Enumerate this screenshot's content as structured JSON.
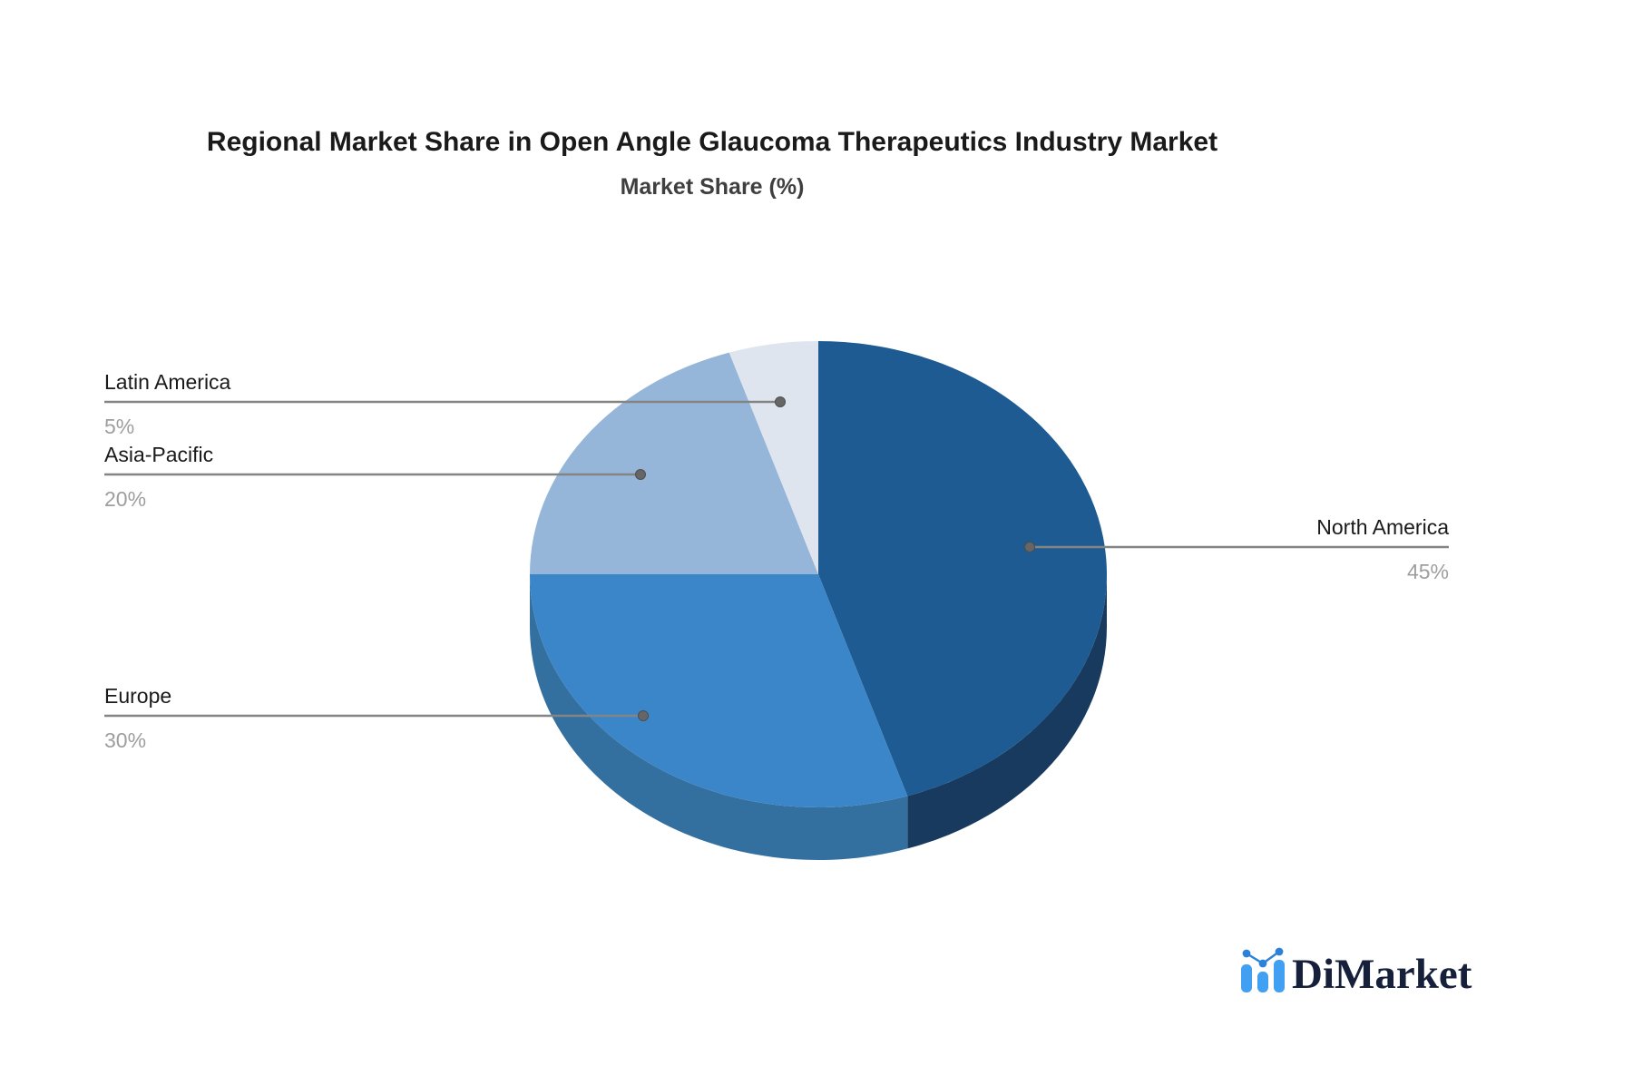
{
  "title": "Regional Market Share in Open Angle Glaucoma Therapeutics Industry Market",
  "subtitle": "Market Share (%)",
  "chart_data": {
    "type": "pie",
    "title": "Regional Market Share in Open Angle Glaucoma Therapeutics Industry Market",
    "subtitle": "Market Share (%)",
    "unit": "%",
    "direction": "clockwise",
    "start_angle_deg": 0,
    "style": "3d",
    "legend_position": "none",
    "categories": [
      "North America",
      "Europe",
      "Asia-Pacific",
      "Latin America"
    ],
    "values": [
      45,
      30,
      20,
      5
    ],
    "series": [
      {
        "name": "North America",
        "value": 45,
        "label": "45%",
        "color": "#1d5b92",
        "side_color": "#173a5e",
        "label_side": "right"
      },
      {
        "name": "Europe",
        "value": 30,
        "label": "30%",
        "color": "#3b86c9",
        "side_color": "#34709f",
        "label_side": "left"
      },
      {
        "name": "Asia-Pacific",
        "value": 20,
        "label": "20%",
        "color": "#95b6d9",
        "side_color": "#7e9fc2",
        "label_side": "left"
      },
      {
        "name": "Latin America",
        "value": 5,
        "label": "5%",
        "color": "#dee5ef",
        "side_color": "#c2cbd9",
        "label_side": "left"
      }
    ]
  },
  "logo": {
    "text": "DiMarket",
    "icon": "bar-chart-with-trend-dots-icon",
    "icon_bar_color": "#42a0f2",
    "icon_dot_color": "#2c82d9",
    "text_color": "#16203a"
  },
  "colors": {
    "background": "#ffffff",
    "leader_line": "#848484",
    "label_text": "#1a1a1a",
    "percent_text": "#9e9e9e"
  }
}
